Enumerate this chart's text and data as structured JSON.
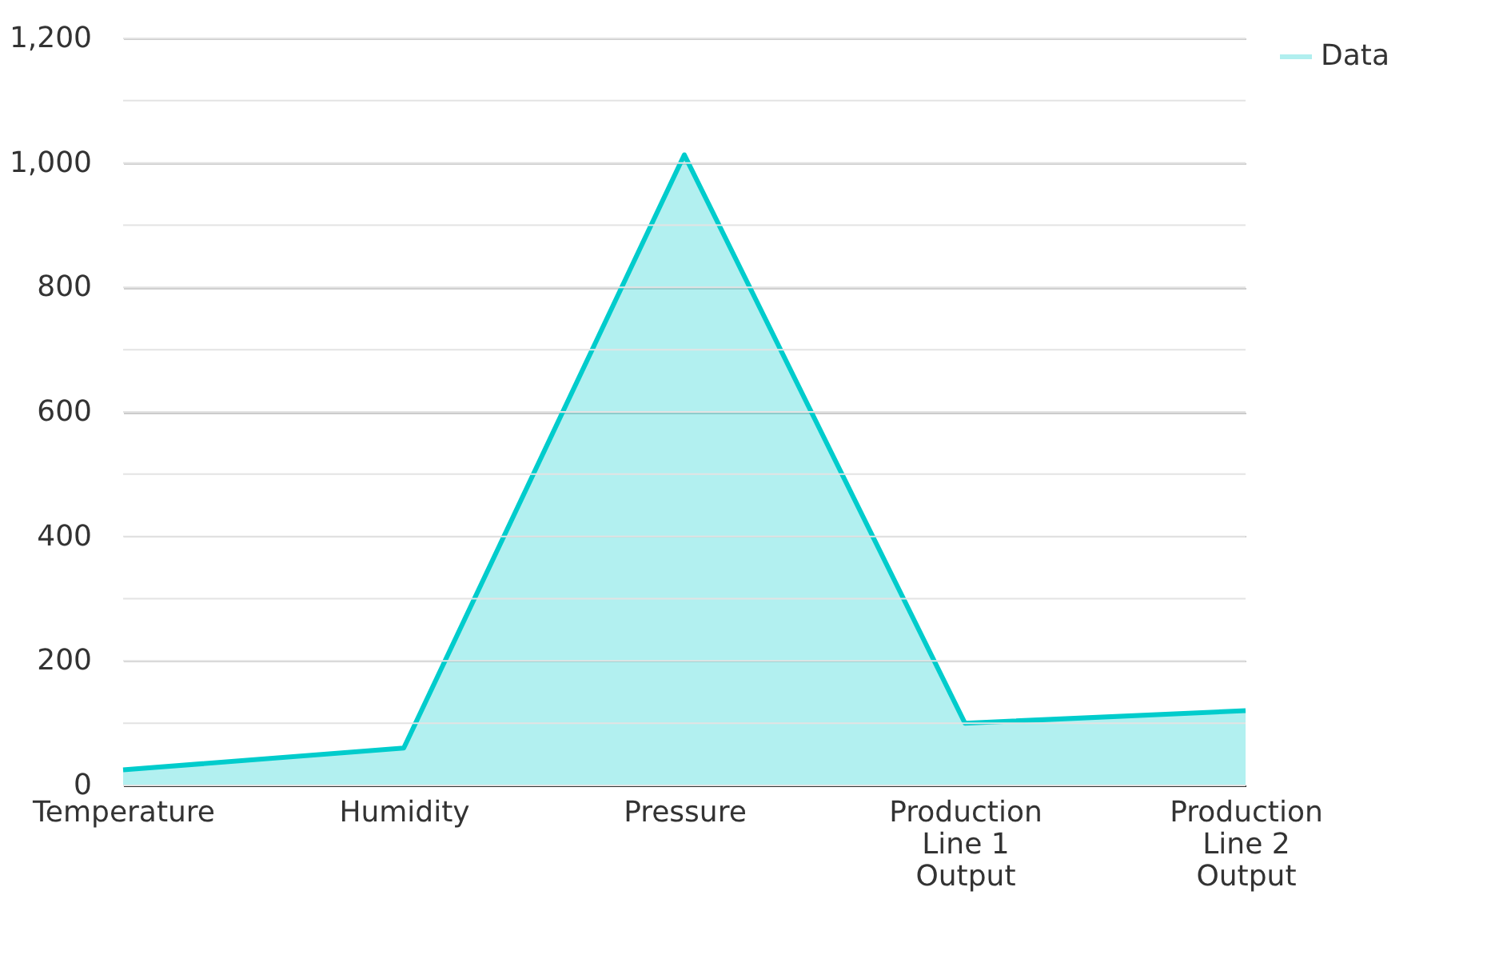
{
  "chart_data": {
    "type": "area",
    "categories": [
      "Temperature",
      "Humidity",
      "Pressure",
      "Production Line 1 Output",
      "Production Line 2 Output"
    ],
    "series": [
      {
        "name": "Data",
        "color": "#00cccc",
        "values": [
          25,
          60,
          1013,
          100,
          120
        ]
      }
    ],
    "ylim": [
      0,
      1200
    ],
    "yticks": [
      0,
      {
        "value": 100,
        "label": null
      },
      200,
      {
        "value": 300,
        "label": null
      },
      400,
      {
        "value": 500,
        "label": null
      },
      600,
      {
        "value": 700,
        "label": null
      },
      800,
      {
        "value": 900,
        "label": null
      },
      {
        "value": 1000,
        "label": "1,000"
      },
      {
        "value": 1100,
        "label": null
      },
      {
        "value": 1200,
        "label": "1,200"
      }
    ],
    "grid": "y",
    "legend": "top right"
  }
}
